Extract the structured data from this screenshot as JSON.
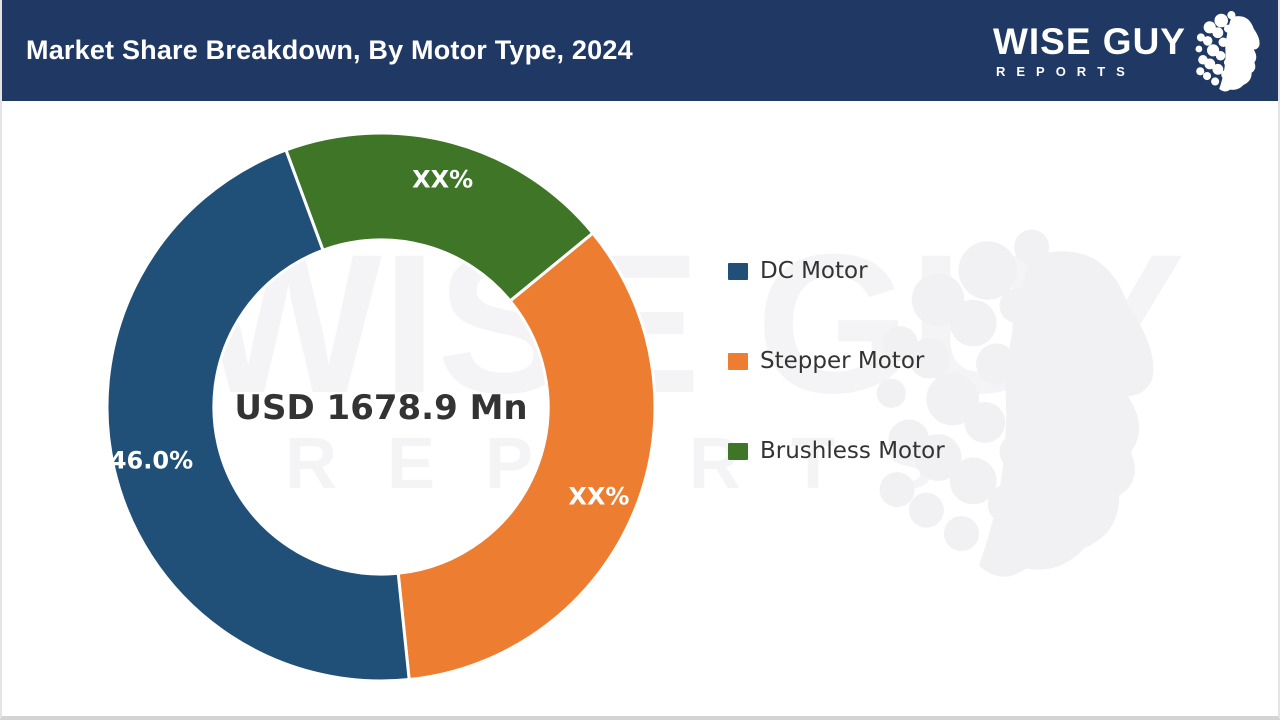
{
  "header": {
    "title": "Market Share Breakdown, By Motor Type, 2024",
    "logo": {
      "line1": "WISE GUY",
      "line2": "REPORTS"
    }
  },
  "chart_data": {
    "type": "pie",
    "title": "Market Share Breakdown, By Motor Type, 2024",
    "donut": true,
    "center_total": "USD 1678.9 Mn",
    "segments": [
      {
        "name": "DC Motor",
        "value_pct": 46.0,
        "label": "46.0%",
        "color": "#205078"
      },
      {
        "name": "Stepper Motor",
        "value_pct": 34.3,
        "label": "XX%",
        "color": "#ed7d31"
      },
      {
        "name": "Brushless Motor",
        "value_pct": 19.7,
        "label": "XX%",
        "color": "#3e7527"
      }
    ],
    "layout": {
      "start_angle_deg": -20.3,
      "draw_sequence": [
        2,
        1,
        0
      ],
      "inner_radius_ratio": 0.61,
      "label_radius_ratio": 0.86,
      "legend_position": "right"
    }
  },
  "watermark": {
    "line1": "WISE GUY",
    "line2": "REPORTS"
  },
  "colors": {
    "header_bg": "#203864",
    "text_dark": "#333333",
    "watermark": "#f4f4f6"
  }
}
